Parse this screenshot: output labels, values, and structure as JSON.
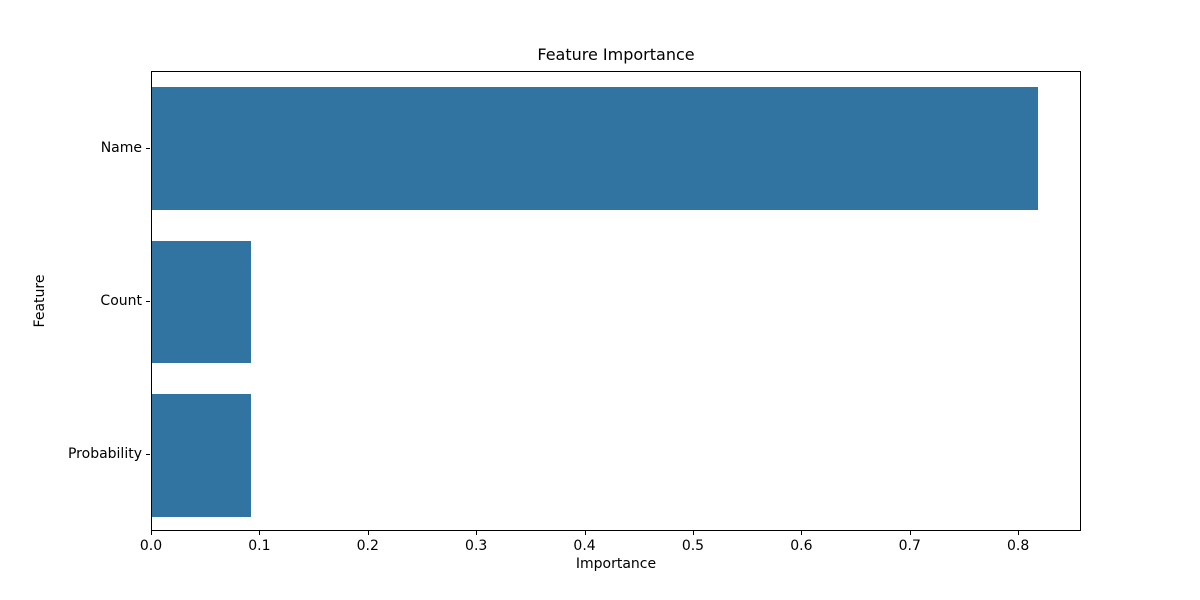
{
  "chart_data": {
    "type": "bar",
    "orientation": "horizontal",
    "title": "Feature Importance",
    "xlabel": "Importance",
    "ylabel": "Feature",
    "categories": [
      "Name",
      "Count",
      "Probability"
    ],
    "values": [
      0.817,
      0.091,
      0.091
    ],
    "xlim": [
      0,
      0.858
    ],
    "xticks": [
      0.0,
      0.1,
      0.2,
      0.3,
      0.4,
      0.5,
      0.6,
      0.7,
      0.8
    ],
    "xtick_decimals": 1,
    "grid": false,
    "legend_position": "none",
    "colors": {
      "bar": "#3274a1",
      "spine": "#000000",
      "text": "#000000",
      "background": "#ffffff"
    }
  }
}
